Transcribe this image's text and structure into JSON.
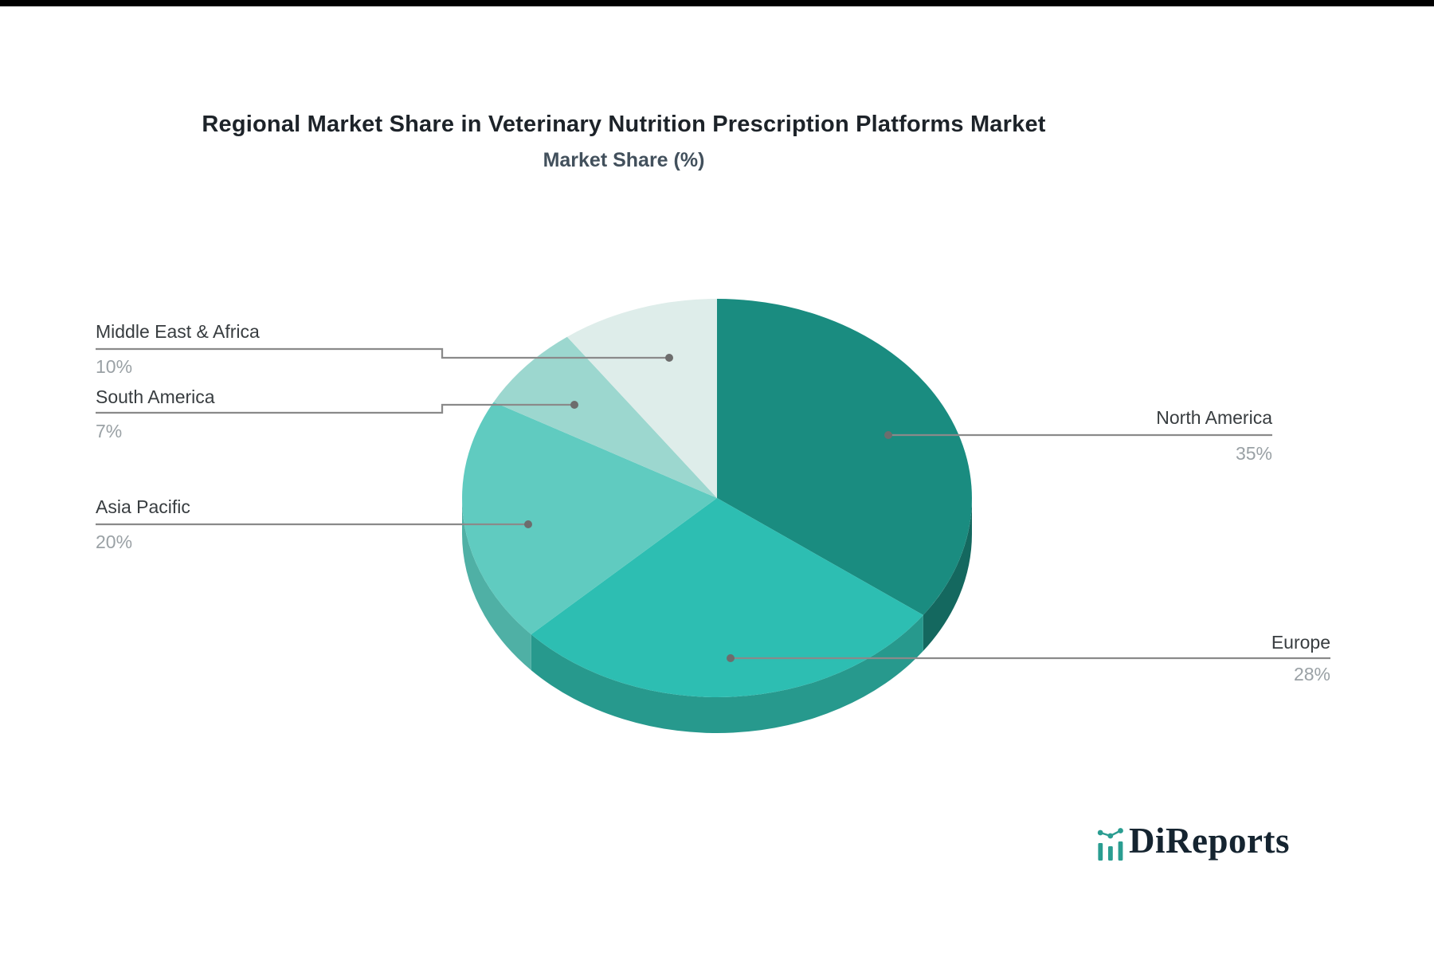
{
  "page": {
    "background": "#ffffff",
    "top_bar_color": "#000000"
  },
  "title": "Regional Market Share in Veterinary Nutrition Prescription Platforms Market",
  "subtitle": "Market Share (%)",
  "chart_data": {
    "type": "pie",
    "title": "Regional Market Share in Veterinary Nutrition Prescription Platforms Market",
    "subtitle": "Market Share (%)",
    "unit": "%",
    "effect": "3d",
    "start_angle": "12-o-clock",
    "direction": "clockwise",
    "legend_position": "callout-labels",
    "categories": [
      "North America",
      "Europe",
      "Asia Pacific",
      "South America",
      "Middle East & Africa"
    ],
    "values": [
      35,
      28,
      20,
      7,
      10
    ],
    "slices": [
      {
        "label": "North America",
        "value": 35,
        "pct_label": "35%",
        "color": "#1a8c80",
        "depth_color": "#14685f"
      },
      {
        "label": "Europe",
        "value": 28,
        "pct_label": "28%",
        "color": "#2dbeb2",
        "depth_color": "#27998d"
      },
      {
        "label": "Asia Pacific",
        "value": 20,
        "pct_label": "20%",
        "color": "#60cbc0",
        "depth_color": "#4fb0a5"
      },
      {
        "label": "South America",
        "value": 7,
        "pct_label": "7%",
        "color": "#9cd7cf",
        "depth_color": "#8abfb8"
      },
      {
        "label": "Middle East & Africa",
        "value": 10,
        "pct_label": "10%",
        "color": "#deedea",
        "depth_color": "#c4d8d4"
      }
    ]
  },
  "callout": {
    "line_color": "#8a8a8a",
    "dot_color": "#6d6d6d"
  },
  "logo": {
    "text": "DiReports",
    "text_color": "#152430",
    "icon_color": "#2a9d91",
    "icon": "bar-chart-trend-icon"
  }
}
